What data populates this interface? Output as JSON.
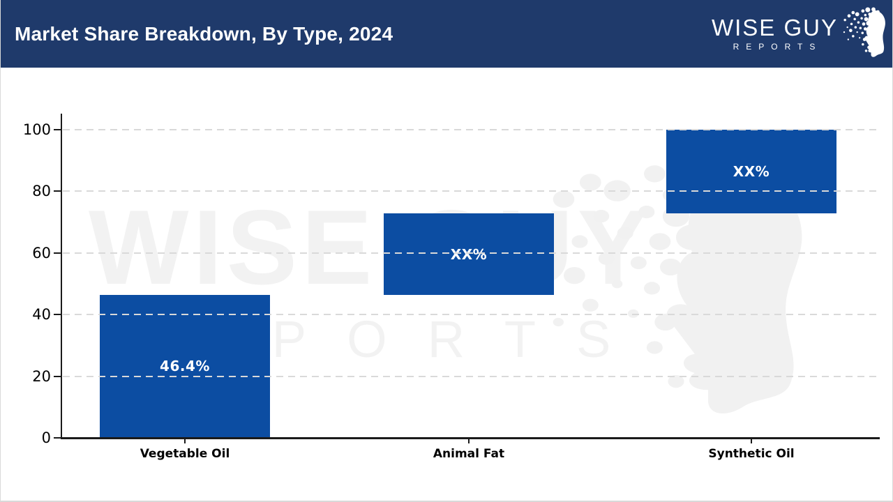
{
  "header": {
    "title": "Market Share Breakdown, By Type, 2024",
    "logo": {
      "line1": "WISE GUY",
      "line2": "REPORTS"
    }
  },
  "watermark": {
    "line1": "WISE GUY",
    "line2": "REPORTS"
  },
  "colors": {
    "header_bg": "#1F3A6B",
    "bar": "#0C4DA2",
    "grid": "#D9D9D9",
    "axis": "#1A1A1A",
    "watermark": "#F2F2F2",
    "bar_label": "#FFFFFF"
  },
  "chart_data": {
    "type": "bar",
    "subtype": "waterfall",
    "title": "Market Share Breakdown, By Type, 2024",
    "categories": [
      "Vegetable Oil",
      "Animal Fat",
      "Synthetic Oil"
    ],
    "segments": [
      {
        "category": "Vegetable Oil",
        "label": "46.4%",
        "start": 0,
        "end": 46.4
      },
      {
        "category": "Animal Fat",
        "label": "XX%",
        "start": 46.4,
        "end": 72.8
      },
      {
        "category": "Synthetic Oil",
        "label": "XX%",
        "start": 72.8,
        "end": 100
      }
    ],
    "y_ticks": [
      0,
      20,
      40,
      60,
      80,
      100
    ],
    "ylim": [
      0,
      100
    ],
    "xlabel": "",
    "ylabel": "",
    "grid": "horizontal-dashed",
    "legend": "none"
  }
}
